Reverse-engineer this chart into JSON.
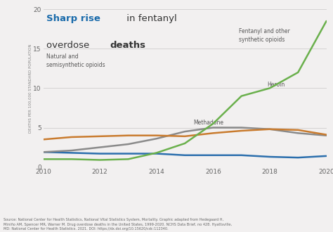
{
  "background_color": "#f2f0f0",
  "plot_bg_color": "#f2f0f0",
  "years": [
    2010,
    2011,
    2012,
    2013,
    2014,
    2015,
    2016,
    2017,
    2018,
    2019,
    2020
  ],
  "fentanyl": [
    1.0,
    1.0,
    0.9,
    1.0,
    1.8,
    3.0,
    5.5,
    9.0,
    10.0,
    12.0,
    18.5
  ],
  "natural_semi": [
    3.5,
    3.8,
    3.9,
    4.0,
    4.0,
    3.9,
    4.3,
    4.6,
    4.8,
    4.7,
    4.1
  ],
  "heroin": [
    1.9,
    2.1,
    2.5,
    2.9,
    3.6,
    4.5,
    5.0,
    5.0,
    4.8,
    4.3,
    4.0
  ],
  "methadone": [
    1.9,
    1.8,
    1.7,
    1.7,
    1.7,
    1.5,
    1.5,
    1.5,
    1.3,
    1.2,
    1.4
  ],
  "fentanyl_color": "#6ab04c",
  "natural_color": "#c97b2e",
  "heroin_color": "#8a8a8a",
  "methadone_color": "#2c6fad",
  "ylabel": "DEATHS PER 100,000 STANDARD POPULATION",
  "ylim": [
    0,
    20
  ],
  "yticks": [
    0,
    5,
    10,
    15,
    20
  ],
  "xlim": [
    2010,
    2020
  ],
  "xticks": [
    2010,
    2012,
    2014,
    2016,
    2018,
    2020
  ],
  "title_bold": "Sharp rise",
  "title_regular1": " in fentanyl",
  "title_line2_reg": "overdose ",
  "title_bold2": "deaths",
  "title_color_bold": "#1a6bab",
  "title_color_reg": "#333333",
  "ann_fentanyl": "Fentanyl and other\nsynthetic opioids",
  "ann_natural": "Natural and\nsemisynthetic opioids",
  "ann_heroin": "Heroin",
  "ann_methadone": "Methadone",
  "ann_color": "#555555",
  "source_text": "Source: National Center for Health Statistics, National Vital Statistics System, Mortality. Graphic adapted from Hedegaard H,\nMiniño AM, Spencer MR, Warner M. Drug overdose deaths in the United States, 1999-2020. NCHS Data Brief, no 428. Hyattsville,\nMD: National Center for Health Statistics. 2021. DOI: https://dx.doi.org/10.15620/cdc:112340.",
  "line_width": 1.8
}
